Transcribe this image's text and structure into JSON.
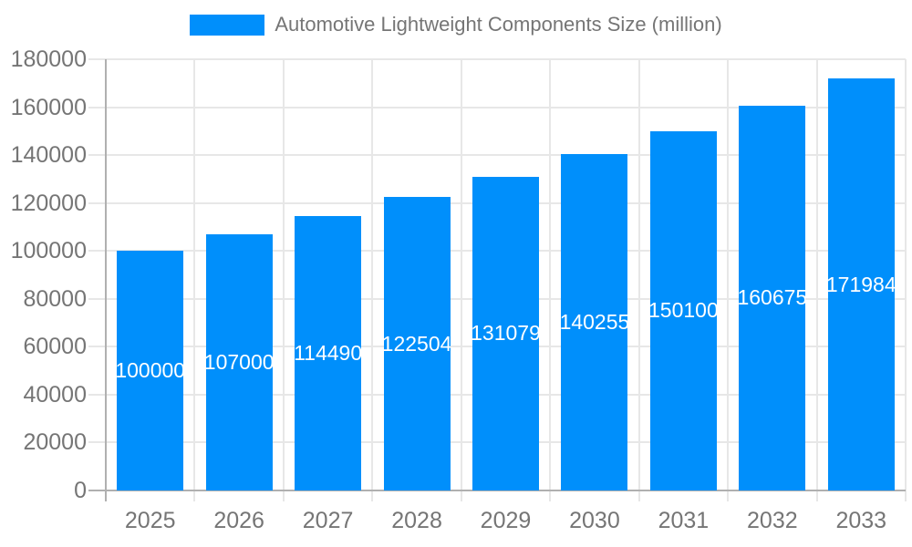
{
  "chart_data": {
    "type": "bar",
    "legend": "Automotive Lightweight Components Size (million)",
    "legend_position": "top",
    "categories": [
      "2025",
      "2026",
      "2027",
      "2028",
      "2029",
      "2030",
      "2031",
      "2032",
      "2033"
    ],
    "values": [
      100000,
      107000,
      114490,
      122504,
      131079,
      140255,
      150100,
      160675,
      171984
    ],
    "value_labels": [
      "100000",
      "107000",
      "114490",
      "122504",
      "131079",
      "140255",
      "150100",
      "160675",
      "171984"
    ],
    "ytick_labels": [
      "0",
      "20000",
      "40000",
      "60000",
      "80000",
      "100000",
      "120000",
      "140000",
      "160000",
      "180000"
    ],
    "ytick_values": [
      0,
      20000,
      40000,
      60000,
      80000,
      100000,
      120000,
      140000,
      160000,
      180000
    ],
    "ylim": [
      0,
      180000
    ],
    "grid": true,
    "colors": {
      "bar": "#008FFB",
      "value_label": "#ffffff",
      "axis_line": "#b0b0b0",
      "gridline": "#e7e7e7",
      "tick_label": "#757575",
      "legend_text": "#757575",
      "background": "#ffffff"
    }
  }
}
